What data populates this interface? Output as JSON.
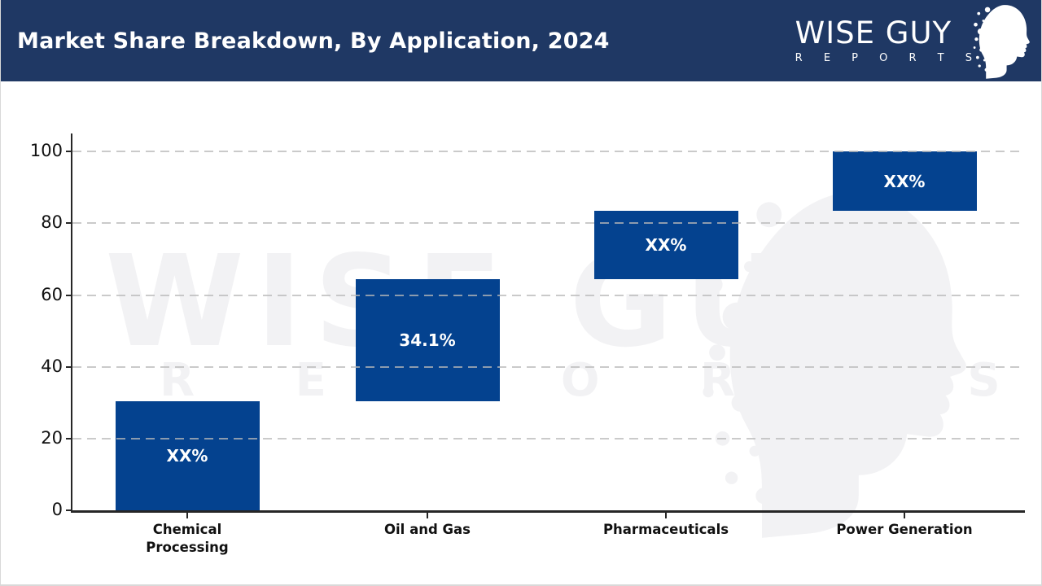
{
  "header": {
    "title": "Market Share Breakdown, By Application, 2024",
    "logo": {
      "line1": "WISE GUY",
      "line2": "R E P O R T S"
    }
  },
  "watermark": {
    "line1": "WISE GUY",
    "line2": "R E P O R T S"
  },
  "colors": {
    "header_bg": "#1f3864",
    "bar": "#04428f",
    "bar_label": "#ffffff",
    "watermark": "#f2f2f4",
    "axis": "#262626",
    "grid": "#c3c3c3",
    "tick_text": "#111111"
  },
  "chart_data": {
    "type": "bar",
    "subtype": "waterfall-stacked",
    "title": "Market Share Breakdown, By Application, 2024",
    "categories": [
      "Chemical Processing",
      "Oil and Gas",
      "Pharmaceuticals",
      "Power Generation"
    ],
    "segments": [
      {
        "category": "Chemical Processing",
        "start": 0,
        "end": 30.3,
        "label": "XX%"
      },
      {
        "category": "Oil and Gas",
        "start": 30.3,
        "end": 64.4,
        "label": "34.1%",
        "value": 34.1
      },
      {
        "category": "Pharmaceuticals",
        "start": 64.4,
        "end": 83.5,
        "label": "XX%"
      },
      {
        "category": "Power Generation",
        "start": 83.5,
        "end": 100,
        "label": "XX%"
      }
    ],
    "xlabel": "",
    "ylabel": "",
    "yticks": [
      0,
      20,
      40,
      60,
      80,
      100
    ],
    "ylim": [
      0,
      105
    ],
    "grid": "horizontal dashed, drawn over bars",
    "legend": "none"
  }
}
